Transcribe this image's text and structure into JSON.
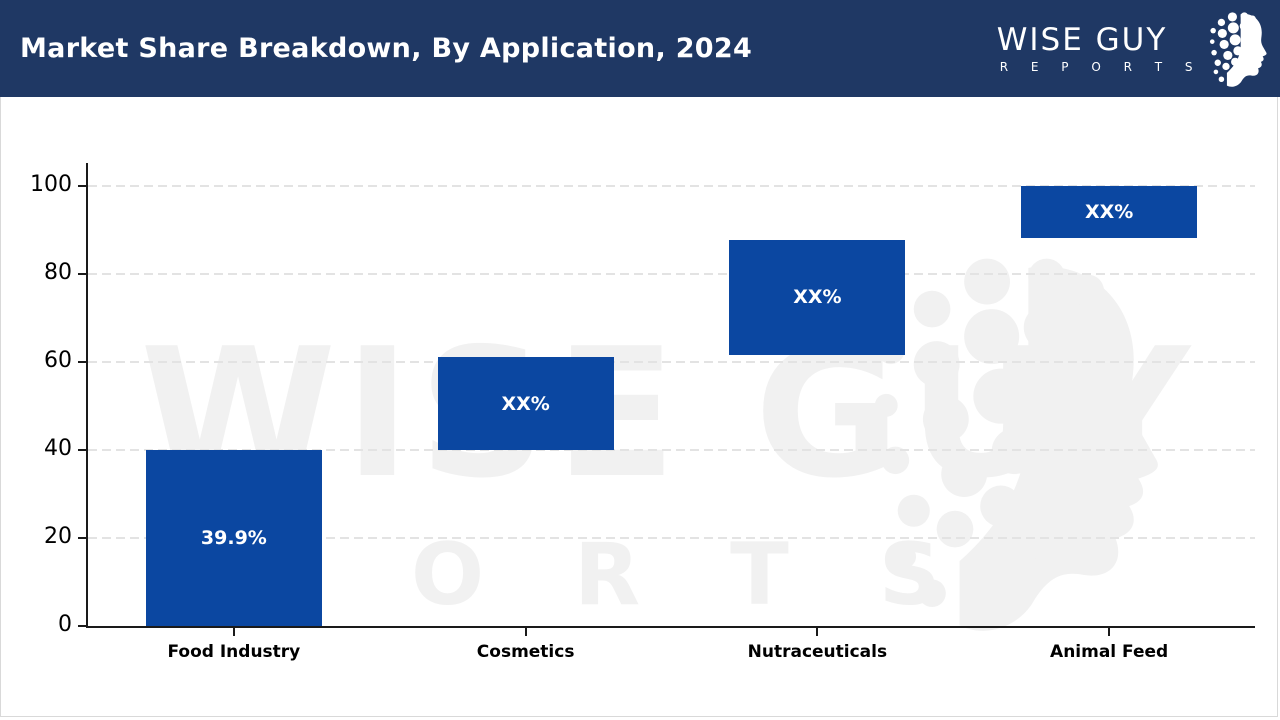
{
  "header": {
    "title": "Market Share Breakdown, By Application, 2024",
    "bg_color": "#1f3864",
    "logo": {
      "line1": "WISE GUY",
      "line2": "R E P O R T S"
    }
  },
  "watermark": {
    "line1": "WISE GUY",
    "line2": "P O R T S"
  },
  "chart_data": {
    "type": "bar",
    "subtype": "waterfall",
    "title": "Market Share Breakdown, By Application, 2024",
    "xlabel": "",
    "ylabel": "",
    "categories": [
      "Food Industry",
      "Cosmetics",
      "Nutraceuticals",
      "Animal Feed"
    ],
    "segments": [
      {
        "category": "Food Industry",
        "start": 0,
        "end": 39.9,
        "label": "39.9%"
      },
      {
        "category": "Cosmetics",
        "start": 39.9,
        "end": 61.2,
        "label": "XX%"
      },
      {
        "category": "Nutraceuticals",
        "start": 61.6,
        "end": 87.8,
        "label": "XX%"
      },
      {
        "category": "Animal Feed",
        "start": 88.1,
        "end": 100,
        "label": "XX%"
      }
    ],
    "ylim": [
      0,
      100
    ],
    "yticks": [
      0,
      20,
      40,
      60,
      80,
      100
    ],
    "grid": "horizontal-dashed",
    "legend": "none",
    "bar_color": "#0b47a1",
    "bar_label_color": "#ffffff",
    "axis_color": "#1a1a1a",
    "gridline_color": "#e3e3e3"
  }
}
